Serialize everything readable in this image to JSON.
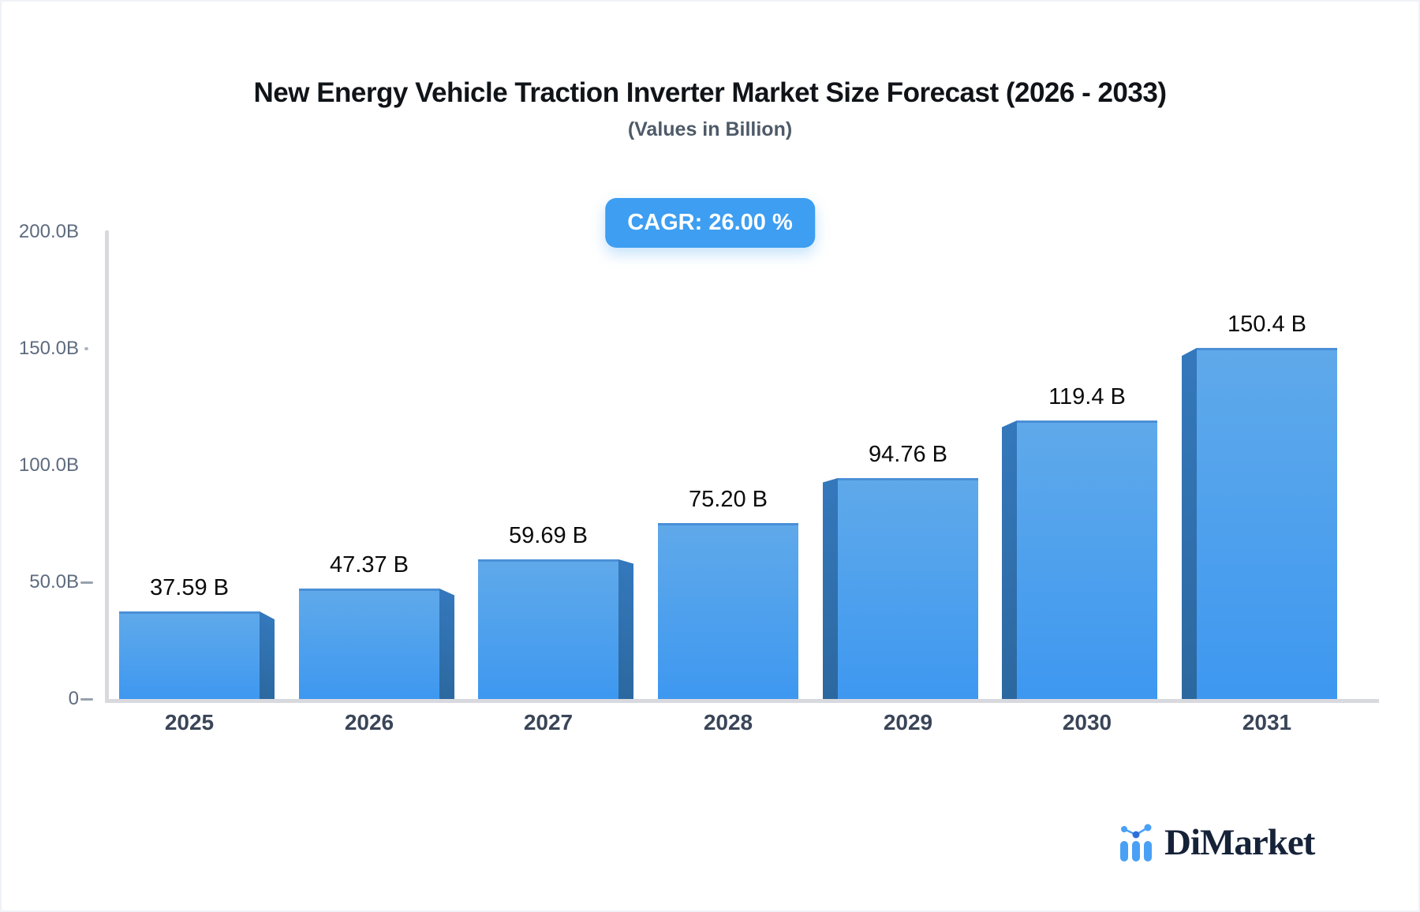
{
  "page": {
    "background": "#ffffff",
    "border_color": "#eff2f6"
  },
  "header": {
    "title": "New Energy Vehicle Traction Inverter Market Size Forecast (2026 - 2033)",
    "subtitle": "(Values in Billion)"
  },
  "badge": {
    "label": "CAGR: 26.00 %",
    "background": "#3d9ef2",
    "text_color": "#ffffff"
  },
  "chart_data": {
    "type": "bar",
    "title": "New Energy Vehicle Traction Inverter Market Size Forecast (2026 - 2033)",
    "subtitle": "(Values in Billion)",
    "units": "Billion",
    "cagr_percent": 26.0,
    "categories": [
      "2025",
      "2026",
      "2027",
      "2028",
      "2029",
      "2030",
      "2031"
    ],
    "values": [
      37.59,
      47.37,
      59.69,
      75.2,
      94.76,
      119.4,
      150.4
    ],
    "value_labels": [
      "37.59 B",
      "47.37 B",
      "59.69 B",
      "75.20 B",
      "94.76 B",
      "119.4 B",
      "150.4 B"
    ],
    "ylim": [
      0,
      200
    ],
    "y_ticks": [
      {
        "label": "200.0B",
        "value": 200,
        "mark": "none"
      },
      {
        "label": "150.0B",
        "value": 150,
        "mark": "dot"
      },
      {
        "label": "100.0B",
        "value": 100,
        "mark": "none"
      },
      {
        "label": "50.0B",
        "value": 50,
        "mark": "dash"
      },
      {
        "label": "0",
        "value": 0,
        "mark": "dash"
      }
    ],
    "grid": false,
    "legend": false,
    "bar_sides": [
      "right",
      "right",
      "right",
      "none",
      "left",
      "left",
      "left"
    ],
    "bar_skew_deg": [
      28,
      24,
      16,
      0,
      16,
      24,
      28
    ],
    "colors": {
      "bar_face_top": "#5fa9ea",
      "bar_face_bottom": "#3e98f0",
      "bar_face_edge": "#4a8fd6",
      "bar_side_top": "#3478bc",
      "bar_side_bottom": "#2c689f",
      "axis_line": "#d8d9df",
      "tick_mark": "#98a1ac",
      "y_label": "#5e6b7e",
      "x_label": "#3a4558",
      "value_label": "#0b0b0b",
      "badge_background": "#3d9ef2"
    }
  },
  "footer": {
    "brand": "DiMarket",
    "logo_bar_color": "#4aa0f4",
    "logo_accent_color": "#2f6fd8",
    "brand_text_color": "#152238"
  }
}
